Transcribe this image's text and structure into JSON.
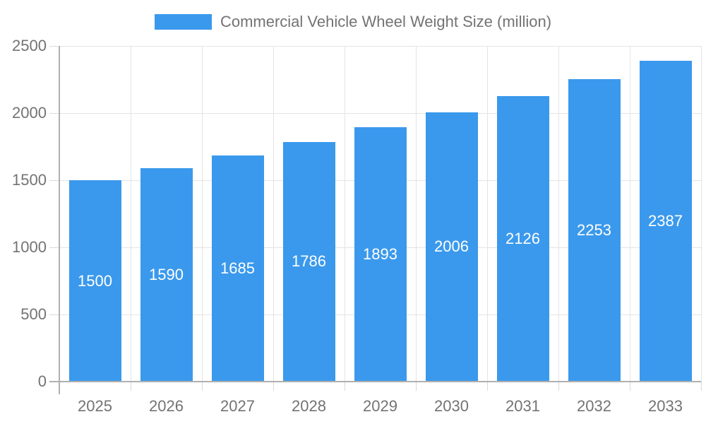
{
  "legend": {
    "label": "Commercial Vehicle Wheel Weight Size (million)"
  },
  "colors": {
    "bar": "#3A99EC",
    "grid": "#E4E4E4",
    "axis": "#B0B0B0",
    "tick_minor": "#D9D9D9",
    "text": "#737373",
    "bar_label": "#FFFFFF"
  },
  "chart_data": {
    "type": "bar",
    "title": "Commercial Vehicle Wheel Weight Size (million)",
    "categories": [
      "2025",
      "2026",
      "2027",
      "2028",
      "2029",
      "2030",
      "2031",
      "2032",
      "2033"
    ],
    "values": [
      1500,
      1590,
      1685,
      1786,
      1893,
      2006,
      2126,
      2253,
      2387
    ],
    "xlabel": "",
    "ylabel": "",
    "ylim": [
      0,
      2500
    ],
    "yticks": [
      0,
      500,
      1000,
      1500,
      2000,
      2500
    ],
    "grid": "on",
    "legend_position": "top-center",
    "value_labels": "inside-middle-white"
  }
}
